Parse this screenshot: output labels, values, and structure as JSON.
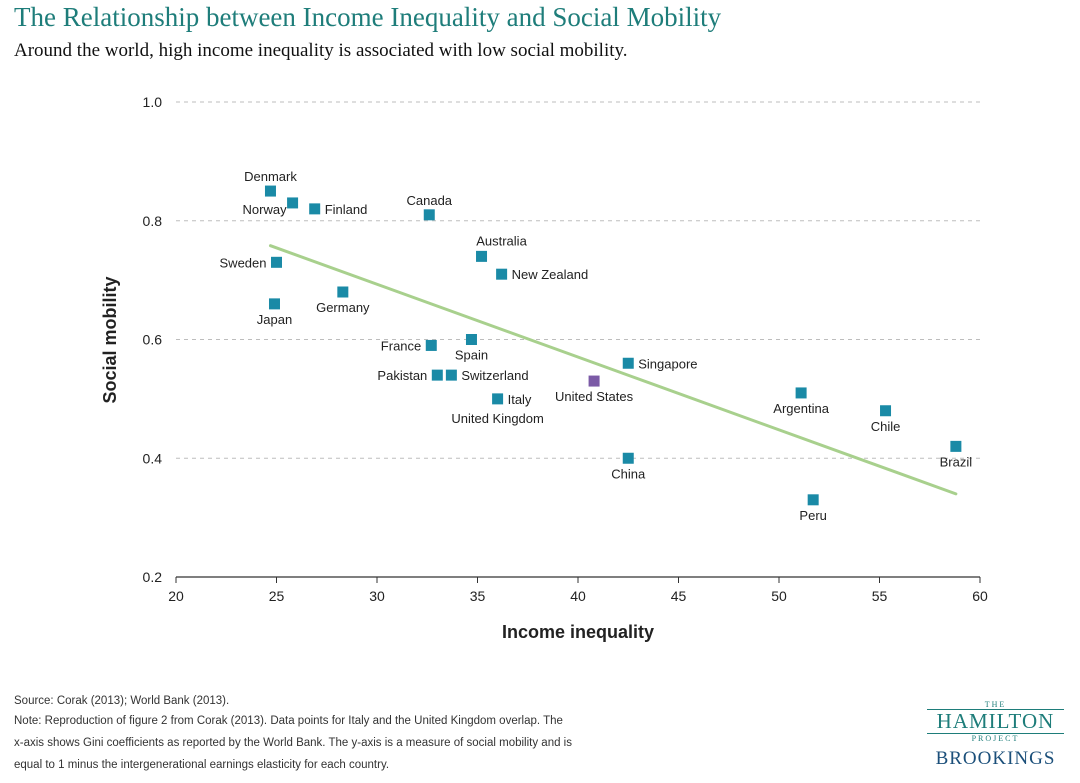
{
  "chart_data": {
    "type": "scatter",
    "title": "The Relationship between Income Inequality and Social Mobility",
    "subtitle": "Around the world, high income inequality is associated with low social mobility.",
    "xlabel": "Income inequality",
    "ylabel": "Social mobility",
    "xlim": [
      20,
      60
    ],
    "ylim": [
      0.2,
      1.0
    ],
    "xticks": [
      20,
      25,
      30,
      35,
      40,
      45,
      50,
      55,
      60
    ],
    "yticks": [
      0.2,
      0.4,
      0.6,
      0.8,
      1.0
    ],
    "ytick_labels": [
      "0.2",
      "0.4",
      "0.6",
      "0.8",
      "1.0"
    ],
    "grid": "horizontal dashed",
    "colors": {
      "point": "#1a8aa6",
      "highlight": "#7b5aa6",
      "trend": "#a8d08d",
      "title": "#1e7d7a"
    },
    "trendline": {
      "x": [
        24.7,
        58.8
      ],
      "y": [
        0.758,
        0.34
      ]
    },
    "points": [
      {
        "name": "Denmark",
        "x": 24.7,
        "y": 0.85,
        "label_pos": "above"
      },
      {
        "name": "Norway",
        "x": 25.8,
        "y": 0.83,
        "label_pos": "below-left"
      },
      {
        "name": "Finland",
        "x": 26.9,
        "y": 0.82,
        "label_pos": "right"
      },
      {
        "name": "Canada",
        "x": 32.6,
        "y": 0.81,
        "label_pos": "above"
      },
      {
        "name": "Sweden",
        "x": 25.0,
        "y": 0.73,
        "label_pos": "left"
      },
      {
        "name": "Australia",
        "x": 35.2,
        "y": 0.74,
        "label_pos": "above-right"
      },
      {
        "name": "New Zealand",
        "x": 36.2,
        "y": 0.71,
        "label_pos": "right"
      },
      {
        "name": "Japan",
        "x": 24.9,
        "y": 0.66,
        "label_pos": "below"
      },
      {
        "name": "Germany",
        "x": 28.3,
        "y": 0.68,
        "label_pos": "below"
      },
      {
        "name": "France",
        "x": 32.7,
        "y": 0.59,
        "label_pos": "left"
      },
      {
        "name": "Spain",
        "x": 34.7,
        "y": 0.6,
        "label_pos": "below"
      },
      {
        "name": "Pakistan",
        "x": 33.0,
        "y": 0.54,
        "label_pos": "left"
      },
      {
        "name": "Switzerland",
        "x": 33.7,
        "y": 0.54,
        "label_pos": "right"
      },
      {
        "name": "Italy",
        "x": 36.0,
        "y": 0.5,
        "label_pos": "right"
      },
      {
        "name": "United Kingdom",
        "x": 36.0,
        "y": 0.5,
        "label_pos": "below-far"
      },
      {
        "name": "United States",
        "x": 40.8,
        "y": 0.53,
        "label_pos": "below",
        "highlight": true
      },
      {
        "name": "Singapore",
        "x": 42.5,
        "y": 0.56,
        "label_pos": "right"
      },
      {
        "name": "China",
        "x": 42.5,
        "y": 0.4,
        "label_pos": "below"
      },
      {
        "name": "Argentina",
        "x": 51.1,
        "y": 0.51,
        "label_pos": "below"
      },
      {
        "name": "Chile",
        "x": 55.3,
        "y": 0.48,
        "label_pos": "below"
      },
      {
        "name": "Brazil",
        "x": 58.8,
        "y": 0.42,
        "label_pos": "below"
      },
      {
        "name": "Peru",
        "x": 51.7,
        "y": 0.33,
        "label_pos": "below"
      }
    ]
  },
  "footer": {
    "source": "Source: Corak (2013); World Bank (2013).",
    "note_1": "Note: Reproduction of figure 2 from Corak (2013). Data points for Italy and the United Kingdom overlap. The",
    "note_2": "x-axis shows Gini coefficients as reported by the World Bank. The y-axis is a measure of social mobility and is",
    "note_3": "equal to 1 minus the intergenerational earnings elasticity for each country."
  },
  "logo": {
    "the": "THE",
    "hamilton": "HAMILTON",
    "project": "PROJECT",
    "brookings": "BROOKINGS"
  }
}
